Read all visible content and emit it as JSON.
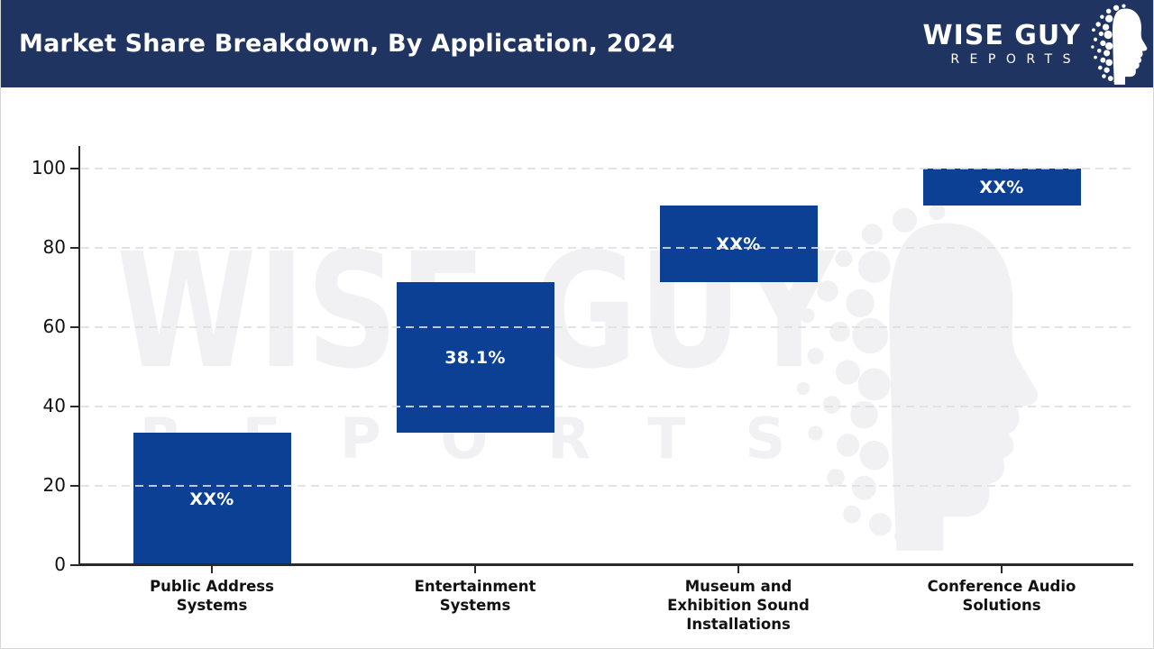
{
  "header": {
    "title": "Market Share Breakdown, By Application, 2024",
    "brand": {
      "name": "WISE GUY",
      "subtitle": "REPORTS"
    }
  },
  "watermark": {
    "name": "WISE GUY",
    "subtitle": "REPORTS"
  },
  "colors": {
    "header_bg": "#203461",
    "bar": "#0b4094",
    "grid": "#e0e0e0",
    "axis": "#2a2a2a",
    "tick_text": "#111111",
    "bar_label_text": "#ffffff",
    "watermark_gray": "#f1f1f4"
  },
  "chart_data": {
    "type": "bar",
    "subtype": "floating-segment-breakdown",
    "title": "Market Share Breakdown, By Application, 2024",
    "categories": [
      "Public Address\nSystems",
      "Entertainment\nSystems",
      "Museum and\nExhibition Sound\nInstallations",
      "Conference Audio\nSolutions"
    ],
    "bars": [
      {
        "category": "Public Address Systems",
        "start": 0,
        "end": 33.3,
        "value_label": "XX%"
      },
      {
        "category": "Entertainment Systems",
        "start": 33.3,
        "end": 71.4,
        "value_label": "38.1%"
      },
      {
        "category": "Museum and Exhibition Sound Installations",
        "start": 71.4,
        "end": 90.6,
        "value_label": "XX%"
      },
      {
        "category": "Conference Audio Solutions",
        "start": 90.6,
        "end": 100,
        "value_label": "XX%"
      }
    ],
    "ylim": [
      0,
      100
    ],
    "yticks": [
      0,
      20,
      40,
      60,
      80,
      100
    ],
    "xlabel": "",
    "ylabel": "",
    "grid": true,
    "grid_style": "dashed",
    "legend": false
  }
}
